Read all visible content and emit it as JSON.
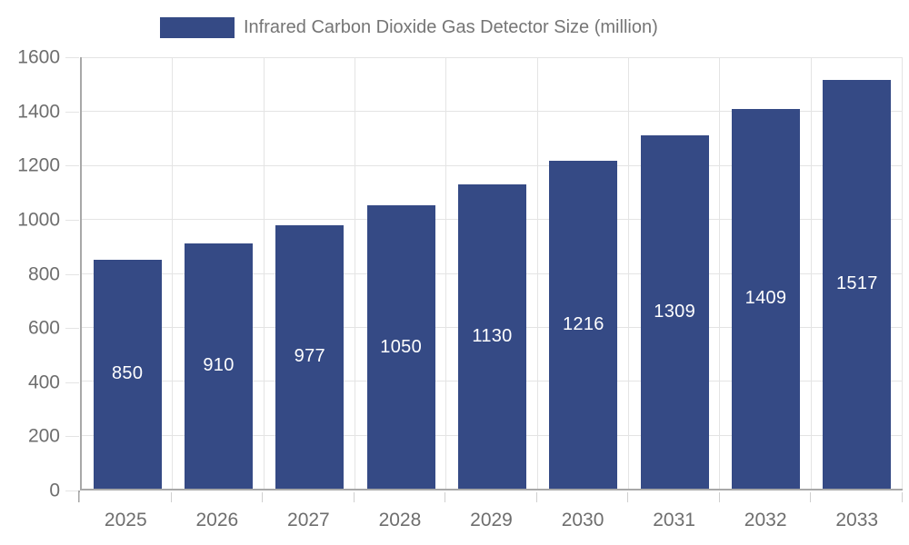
{
  "legend": {
    "label": "Infrared Carbon Dioxide Gas Detector Size (million)"
  },
  "chart_data": {
    "type": "bar",
    "title": "",
    "xlabel": "",
    "ylabel": "",
    "categories": [
      "2025",
      "2026",
      "2027",
      "2028",
      "2029",
      "2030",
      "2031",
      "2032",
      "2033"
    ],
    "values": [
      850,
      910,
      977,
      1050,
      1130,
      1216,
      1309,
      1409,
      1517
    ],
    "series_name": "Infrared Carbon Dioxide Gas Detector Size (million)",
    "ylim": [
      0,
      1600
    ],
    "yticks": [
      0,
      200,
      400,
      600,
      800,
      1000,
      1200,
      1400,
      1600
    ],
    "grid": true,
    "legend_position": "top-left",
    "bar_width_fraction": 0.75,
    "colors": {
      "bar": "#354A85",
      "bar_label": "#FFFFFF",
      "grid": "#E4E4E4",
      "axis_line": "#A8A8A8",
      "tick": "#CFCFCF",
      "tick_label": "#6E6E6E",
      "legend_text": "#757575",
      "background": "#FFFFFF"
    }
  }
}
